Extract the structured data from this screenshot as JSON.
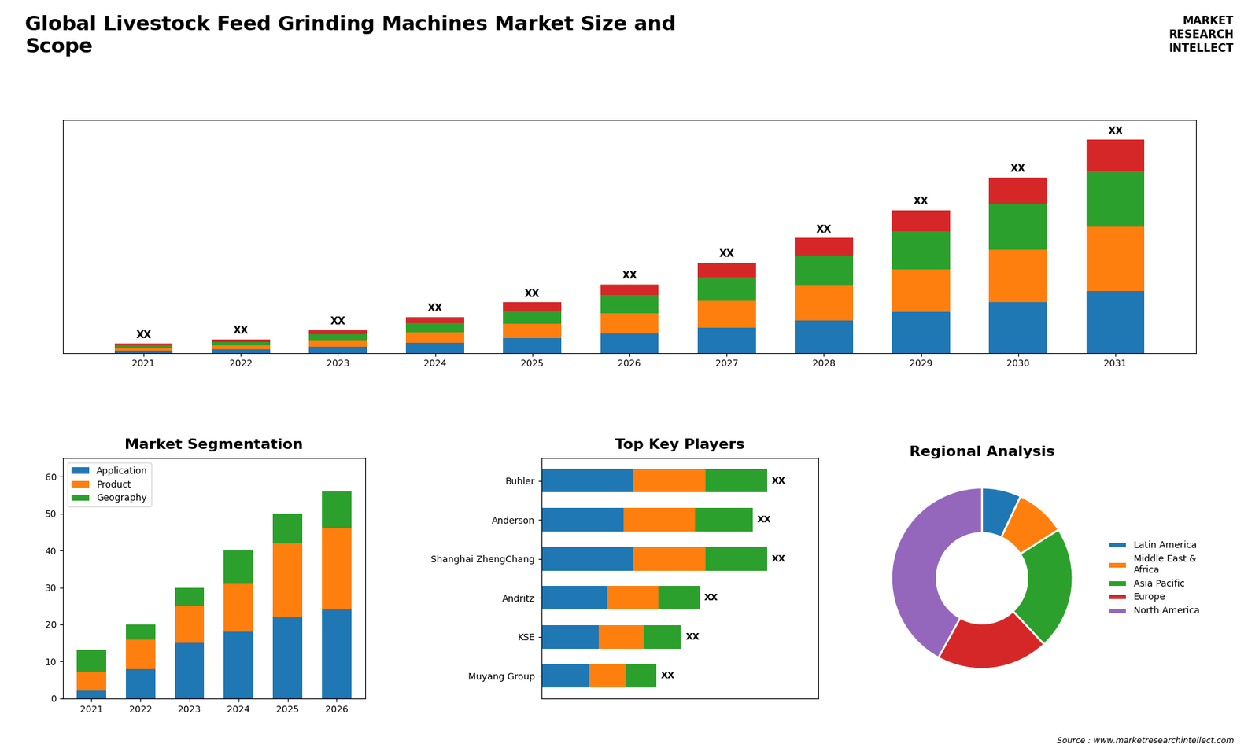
{
  "title": "Global Livestock Feed Grinding Machines Market Size and\nScope",
  "annotations": [
    "MARKET\nRESEARCH\nINTELLECT",
    "Source : www.marketresearchintellect.com"
  ],
  "chart_data": [
    {
      "type": "bar",
      "stacked": true,
      "categories": [
        "2021",
        "2022",
        "2023",
        "2024",
        "2025",
        "2026",
        "2027",
        "2028",
        "2029",
        "2030",
        "2031"
      ],
      "series": [
        {
          "values": [
            0.8,
            1.2,
            2.0,
            3.2,
            4.5,
            6.0,
            7.8,
            10.0,
            12.5,
            15.5,
            19.0
          ]
        },
        {
          "values": [
            0.8,
            1.2,
            2.0,
            3.2,
            4.5,
            6.2,
            8.2,
            10.5,
            13.0,
            16.0,
            19.5
          ]
        },
        {
          "values": [
            0.8,
            1.0,
            1.8,
            2.8,
            4.0,
            5.5,
            7.2,
            9.2,
            11.5,
            14.0,
            17.0
          ]
        },
        {
          "values": [
            0.5,
            0.8,
            1.2,
            1.8,
            2.5,
            3.3,
            4.3,
            5.3,
            6.5,
            8.0,
            9.5
          ]
        }
      ],
      "ylim": [
        0,
        71
      ],
      "tick_labels": "x",
      "annotations": [
        {
          "text": "XX",
          "x": "2021"
        },
        {
          "text": "XX",
          "x": "2022"
        },
        {
          "text": "XX",
          "x": "2023"
        },
        {
          "text": "XX",
          "x": "2024"
        },
        {
          "text": "XX",
          "x": "2025"
        },
        {
          "text": "XX",
          "x": "2026"
        },
        {
          "text": "XX",
          "x": "2027"
        },
        {
          "text": "XX",
          "x": "2028"
        },
        {
          "text": "XX",
          "x": "2029"
        },
        {
          "text": "XX",
          "x": "2030"
        },
        {
          "text": "XX",
          "x": "2031"
        }
      ]
    },
    {
      "type": "bar",
      "stacked": true,
      "title": "Market Segmentation",
      "categories": [
        "2021",
        "2022",
        "2023",
        "2024",
        "2025",
        "2026"
      ],
      "series": [
        {
          "name": "Application",
          "values": [
            2,
            8,
            15,
            18,
            22,
            24
          ]
        },
        {
          "name": "Product",
          "values": [
            5,
            8,
            10,
            13,
            20,
            22
          ]
        },
        {
          "name": "Geography",
          "values": [
            6,
            4,
            5,
            9,
            8,
            10
          ]
        }
      ],
      "ylim": [
        0,
        65
      ],
      "yticks": [
        0,
        10,
        20,
        30,
        40,
        50,
        60
      ],
      "legend": "upper left"
    },
    {
      "type": "bar",
      "orientation": "horizontal",
      "stacked": true,
      "title": "Top Key Players",
      "categories": [
        "Buhler",
        "Anderson",
        "Shanghai ZhengChang",
        "Andritz",
        "KSE",
        "Muyang Group"
      ],
      "series": [
        {
          "values": [
            4.5,
            4.0,
            4.5,
            3.2,
            2.8,
            2.3
          ]
        },
        {
          "values": [
            3.5,
            3.5,
            3.5,
            2.5,
            2.2,
            1.8
          ]
        },
        {
          "values": [
            3.0,
            2.8,
            3.0,
            2.0,
            1.8,
            1.5
          ]
        }
      ],
      "xlim": [
        0,
        13.5
      ],
      "tick_labels": "y",
      "annotations": [
        {
          "text": "XX",
          "y": "Buhler"
        },
        {
          "text": "XX",
          "y": "Anderson"
        },
        {
          "text": "XX",
          "y": "Shanghai ZhengChang"
        },
        {
          "text": "XX",
          "y": "Andritz"
        },
        {
          "text": "XX",
          "y": "KSE"
        },
        {
          "text": "XX",
          "y": "Muyang Group"
        }
      ]
    },
    {
      "type": "donut",
      "title": "Regional Analysis",
      "categories": [
        "Latin America",
        "Middle East &\nAfrica",
        "Asia Pacific",
        "Europe",
        "North America"
      ],
      "values": [
        7,
        9,
        22,
        20,
        42
      ],
      "legend": "center left"
    }
  ]
}
